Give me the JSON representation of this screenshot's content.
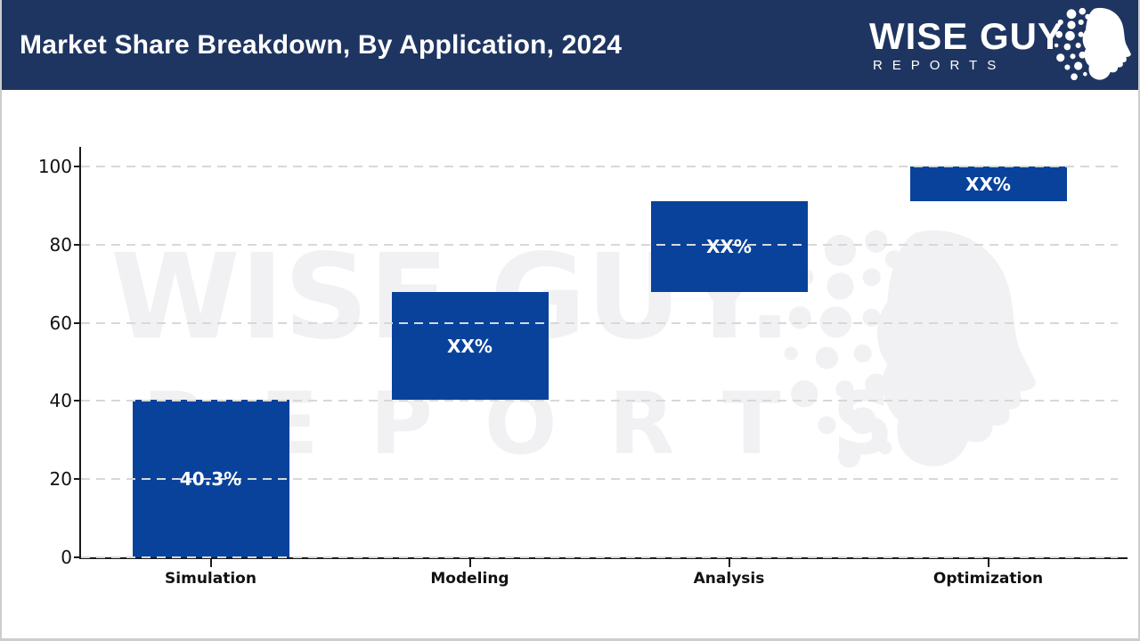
{
  "header": {
    "title": "Market Share Breakdown, By Application, 2024",
    "logo": {
      "line1": "WISE GUY",
      "line2": "REPORTS"
    }
  },
  "watermark": {
    "line1": "WISE GUY.",
    "line2": "REPORTS"
  },
  "colors": {
    "header_bg": "#1f3561",
    "bar": "#08429b",
    "axis": "#1a1a1a",
    "grid": "#d8d8d8",
    "text": "#111111",
    "bar_label": "#ffffff",
    "watermark": "#f1f1f4",
    "page_border": "#cdcdcd"
  },
  "chart_data": {
    "type": "bar",
    "subtype": "waterfall",
    "title": "Market Share Breakdown, By Application, 2024",
    "xlabel": "",
    "ylabel": "",
    "categories": [
      "Simulation",
      "Modeling",
      "Analysis",
      "Optimization"
    ],
    "segments": [
      {
        "category": "Simulation",
        "start": 0,
        "end": 40.3,
        "label": "40.3%"
      },
      {
        "category": "Modeling",
        "start": 40.3,
        "end": 67.9,
        "label": "XX%"
      },
      {
        "category": "Analysis",
        "start": 67.9,
        "end": 91.1,
        "label": "XX%"
      },
      {
        "category": "Optimization",
        "start": 91.1,
        "end": 100,
        "label": "XX%"
      }
    ],
    "ylim": [
      0,
      100
    ],
    "yticks": [
      0,
      20,
      40,
      60,
      80,
      100
    ],
    "grid": "horizontal-dashed",
    "legend": "none",
    "bar_color": "#08429b"
  }
}
